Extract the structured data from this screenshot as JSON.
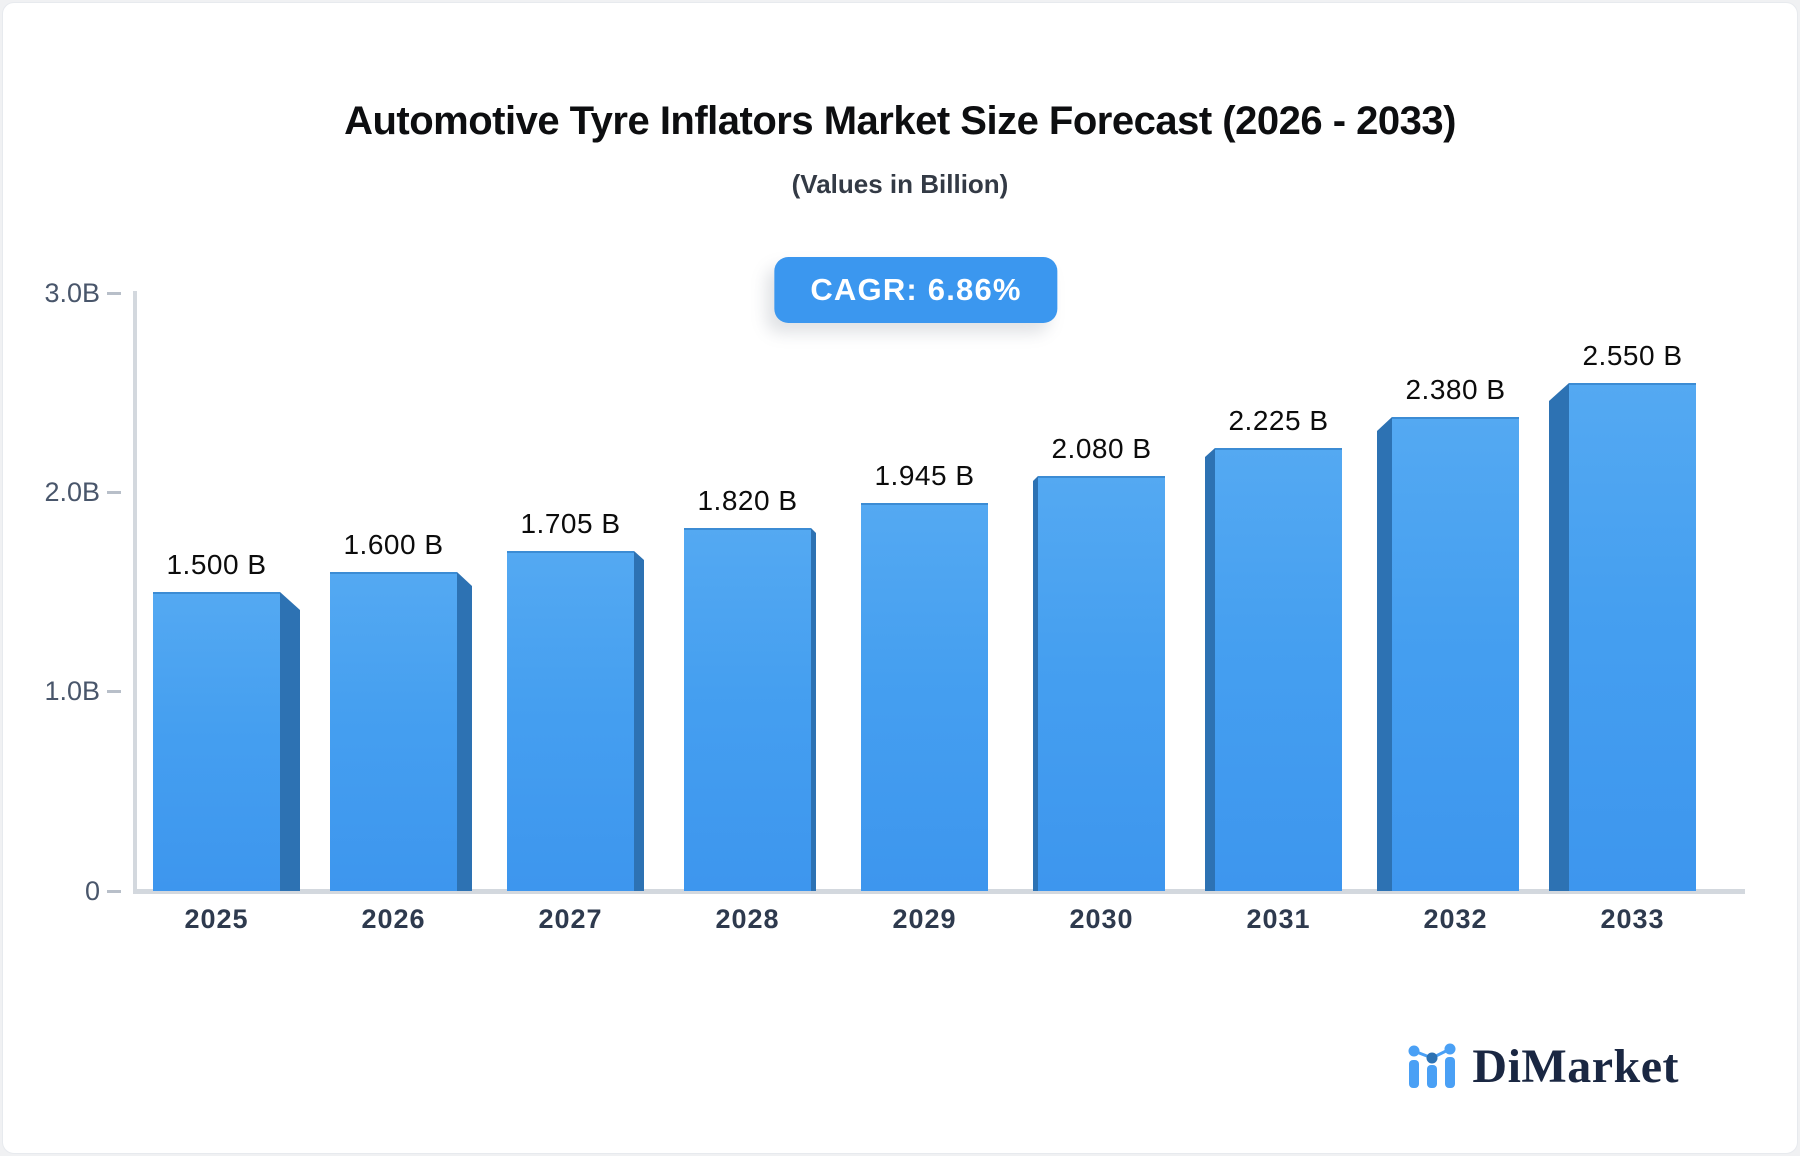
{
  "header": {
    "title": "Automotive Tyre Inflators Market Size Forecast (2026 - 2033)",
    "subtitle": "(Values in Billion)",
    "cagr_badge": "CAGR: 6.86%"
  },
  "chart_data": {
    "type": "bar",
    "title": "Automotive Tyre Inflators Market Size Forecast (2026 - 2033)",
    "subtitle": "(Values in Billion)",
    "unit": "Billion",
    "categories": [
      "2025",
      "2026",
      "2027",
      "2028",
      "2029",
      "2030",
      "2031",
      "2032",
      "2033"
    ],
    "values": [
      1.5,
      1.6,
      1.705,
      1.82,
      1.945,
      2.08,
      2.225,
      2.38,
      2.55
    ],
    "bar_labels": [
      "1.500 B",
      "1.600 B",
      "1.705 B",
      "1.820 B",
      "1.945 B",
      "2.080 B",
      "2.225 B",
      "2.380 B",
      "2.550 B"
    ],
    "cagr": "6.86%",
    "ylim": [
      0,
      3
    ],
    "yticks": [
      {
        "label": "3.0B",
        "value": 3.0
      },
      {
        "label": "2.0B",
        "value": 2.0
      },
      {
        "label": "1.0B",
        "value": 1.0
      },
      {
        "label": "0",
        "value": 0
      }
    ],
    "grid": false,
    "legend": false,
    "bar_color": "#459ff0",
    "bar_side_color": "#2d72b3",
    "accent_color": "#3b97ef",
    "axis_color": "#d3d8de"
  },
  "branding": {
    "logo_text": "DiMarket",
    "logo_text_color": "#1a2742",
    "logo_icon_color": "#4aa0f5"
  }
}
